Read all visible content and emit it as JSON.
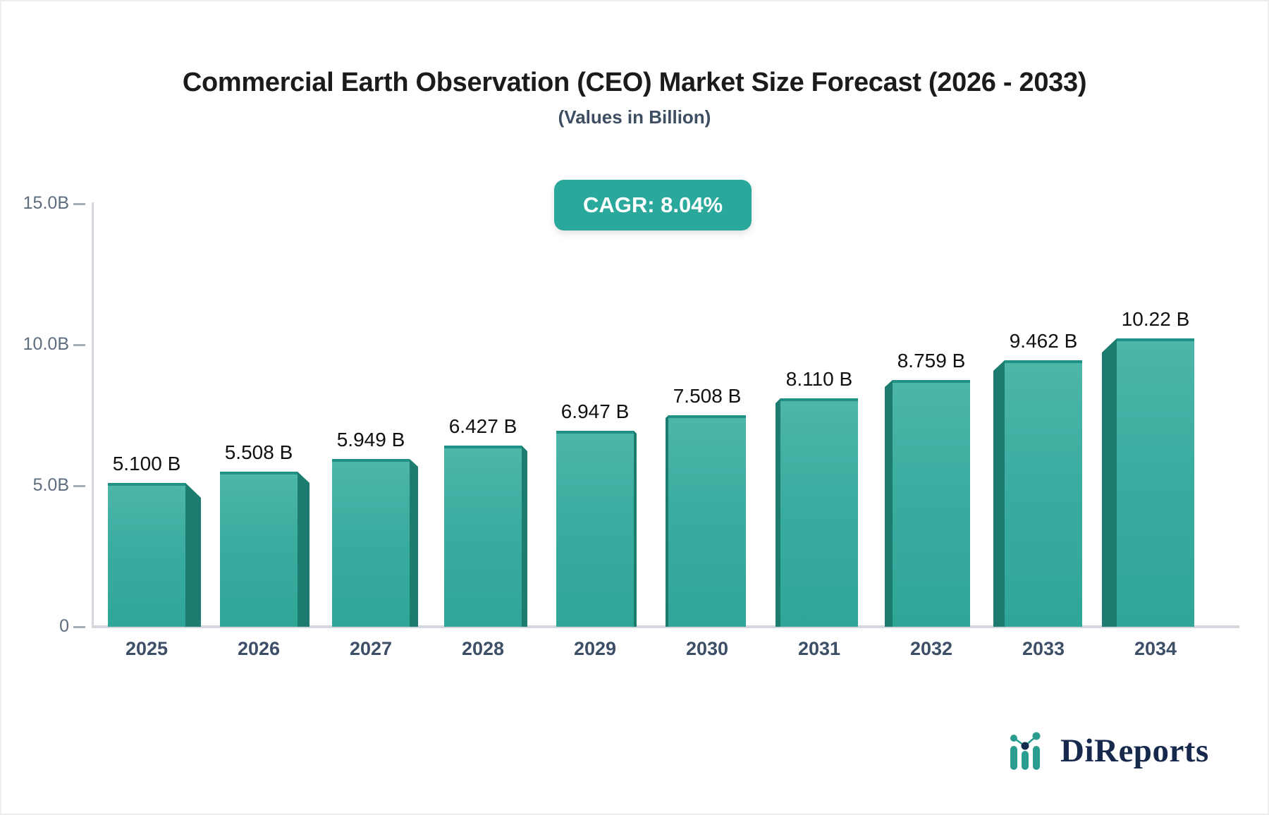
{
  "title": "Commercial Earth Observation (CEO) Market Size Forecast (2026 - 2033)",
  "subtitle": "(Values in Billion)",
  "badge": {
    "label": "CAGR: 8.04%",
    "bg_color": "#2aa89b"
  },
  "chart_data": {
    "type": "bar",
    "title": "Commercial Earth Observation (CEO) Market Size Forecast (2026 - 2033)",
    "subtitle": "(Values in Billion)",
    "categories": [
      "2025",
      "2026",
      "2027",
      "2028",
      "2029",
      "2030",
      "2031",
      "2032",
      "2033",
      "2034"
    ],
    "values": [
      5.1,
      5.508,
      5.949,
      6.427,
      6.947,
      7.508,
      8.11,
      8.759,
      9.462,
      10.22
    ],
    "value_labels": [
      "5.100 B",
      "5.508 B",
      "5.949 B",
      "6.427 B",
      "6.947 B",
      "7.508 B",
      "8.110 B",
      "8.759 B",
      "9.462 B",
      "10.22 B"
    ],
    "xlabel": "",
    "ylabel": "",
    "ylim": [
      0,
      15
    ],
    "yticks": [
      {
        "value": 0,
        "label": "0"
      },
      {
        "value": 5,
        "label": "5.0B"
      },
      {
        "value": 10,
        "label": "10.0B"
      },
      {
        "value": 15,
        "label": "15.0B"
      }
    ],
    "grid": false,
    "legend": "none",
    "bar_style": "3d-extruded-center-perspective",
    "colors": {
      "bar_face_top": "#4db6a8",
      "bar_face_bottom": "#2fa698",
      "bar_top_edge": "#1f9187",
      "bar_side": "#1b7c6f",
      "axis": "#d4d8dd",
      "accent": "#2aa89b"
    }
  },
  "logo": {
    "text": "DiReports",
    "icon": "mini-bar-chart-icon"
  }
}
